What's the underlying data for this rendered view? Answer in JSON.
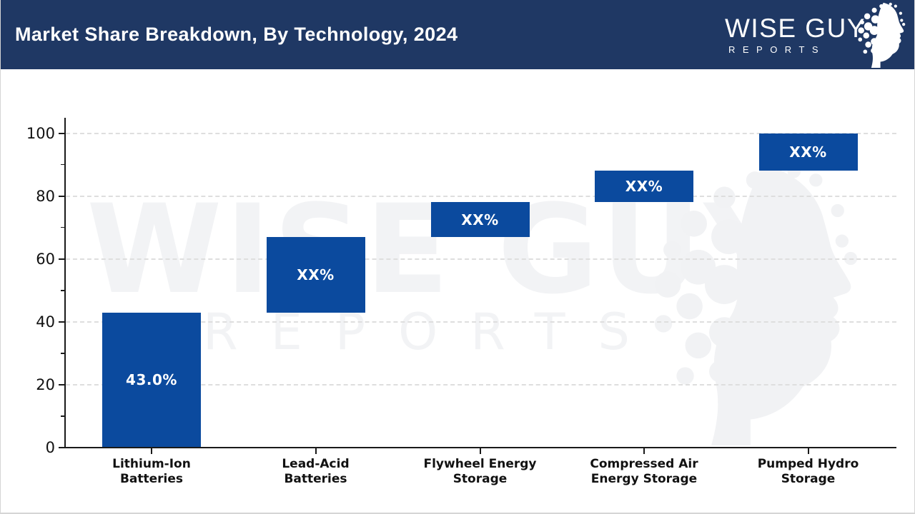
{
  "header": {
    "title": "Market Share Breakdown, By Technology, 2024",
    "logo": {
      "wordmark": "WISE GUY",
      "subtext": "REPORTS"
    }
  },
  "watermark": {
    "line1": "WISE GUY",
    "line2": "REPORTS"
  },
  "chart_data": {
    "type": "bar",
    "subtype": "floating-segment waterfall of market share",
    "title": "Market Share Breakdown, By Technology, 2024",
    "categories": [
      "Lithium-Ion Batteries",
      "Lead-Acid Batteries",
      "Flywheel Energy Storage",
      "Compressed Air Energy Storage",
      "Pumped Hydro Storage"
    ],
    "category_label_lines": [
      [
        "Lithium-Ion",
        "Batteries"
      ],
      [
        "Lead-Acid",
        "Batteries"
      ],
      [
        "Flywheel Energy",
        "Storage"
      ],
      [
        "Compressed Air",
        "Energy Storage"
      ],
      [
        "Pumped Hydro",
        "Storage"
      ]
    ],
    "bars": [
      {
        "category": "Lithium-Ion Batteries",
        "segment_start": 0,
        "segment_end": 43,
        "label": "43.0%"
      },
      {
        "category": "Lead-Acid Batteries",
        "segment_start": 43,
        "segment_end": 67,
        "label": "XX%"
      },
      {
        "category": "Flywheel Energy Storage",
        "segment_start": 67,
        "segment_end": 78,
        "label": "XX%"
      },
      {
        "category": "Compressed Air Energy Storage",
        "segment_start": 78,
        "segment_end": 88,
        "label": "XX%"
      },
      {
        "category": "Pumped Hydro Storage",
        "segment_start": 88,
        "segment_end": 100,
        "label": "XX%"
      }
    ],
    "xlabel": "",
    "ylabel": "",
    "yticks": [
      0,
      20,
      40,
      60,
      80,
      100
    ],
    "yticks_minor": [
      10,
      30,
      50,
      70,
      90
    ],
    "ylim": [
      0,
      105
    ],
    "grid": "horizontal dashed",
    "legend": "none",
    "colors": {
      "bar": "#0b4a9e",
      "bar_label_text": "#ffffff",
      "header_bg": "#1f3864",
      "header_text": "#ffffff",
      "grid": "#dedede",
      "axis": "#1a1a1a",
      "tick_label": "#111111",
      "watermark": "#f1f2f4",
      "background": "#ffffff"
    }
  }
}
